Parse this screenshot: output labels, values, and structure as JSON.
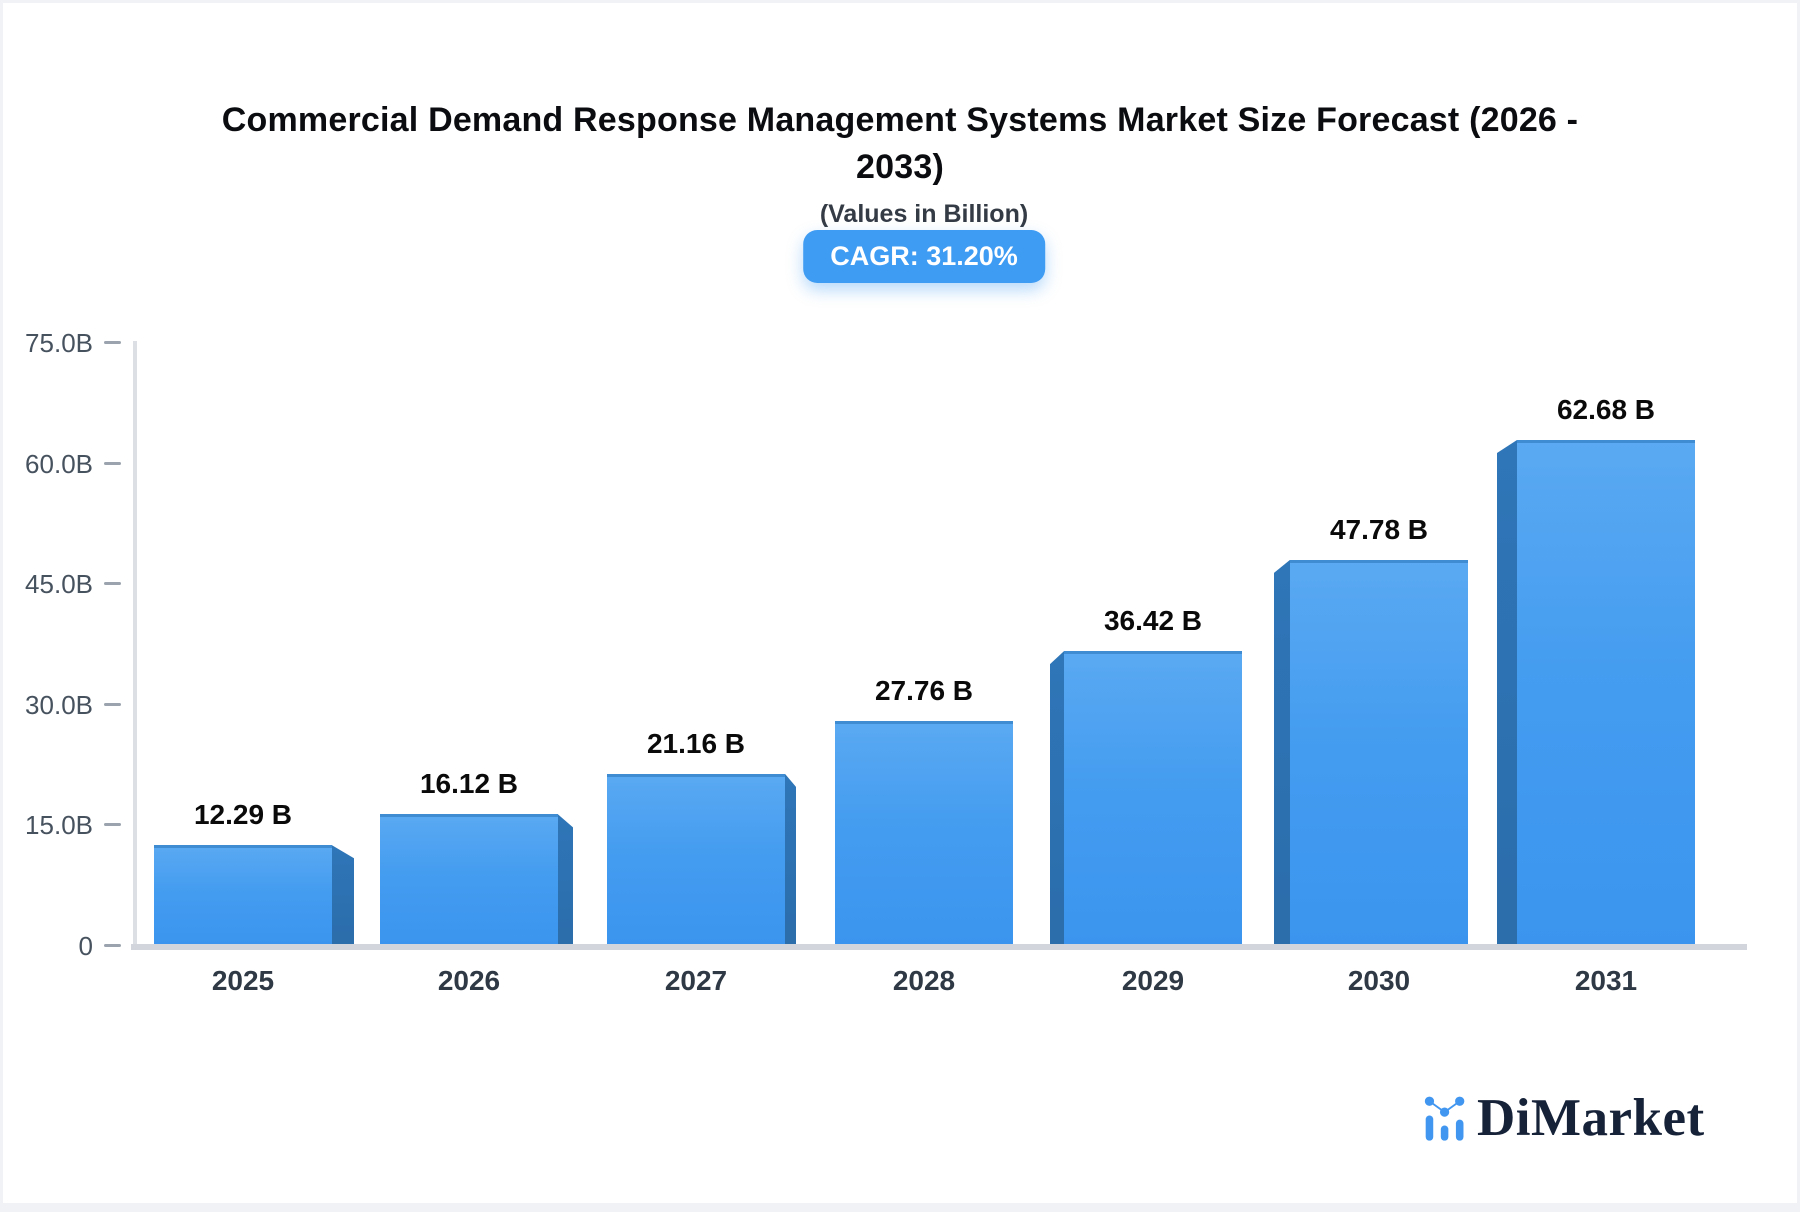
{
  "page": {
    "background": "#f1f2f5",
    "card_background": "#ffffff"
  },
  "title_lines": [
    "Commercial Demand Response Management Systems Market Size Forecast (2026 -",
    "2033)"
  ],
  "chart_data": {
    "type": "bar",
    "title": "Commercial Demand Response Management Systems Market Size Forecast (2026 - 2033)",
    "subtitle": "(Values in Billion)",
    "badge": "CAGR: 31.20%",
    "categories": [
      "2025",
      "2026",
      "2027",
      "2028",
      "2029",
      "2030",
      "2031"
    ],
    "values": [
      12.29,
      16.12,
      21.16,
      27.76,
      36.42,
      47.78,
      62.68
    ],
    "bar_labels": [
      "12.29 B",
      "16.12 B",
      "21.16 B",
      "27.76 B",
      "36.42 B",
      "47.78 B",
      "62.68 B"
    ],
    "y_ticks": [
      {
        "label": "75.0B",
        "value": 75
      },
      {
        "label": "60.0B",
        "value": 60
      },
      {
        "label": "45.0B",
        "value": 45
      },
      {
        "label": "30.0B",
        "value": 30
      },
      {
        "label": "15.0B",
        "value": 15
      },
      {
        "label": "0",
        "value": 0
      }
    ],
    "ylim": [
      0,
      75
    ],
    "unit": "Billion",
    "grid": "off",
    "legend": "none",
    "colors": {
      "bar_face_top": "#5aa9f2",
      "bar_face_bottom": "#3b95ee",
      "bar_side": "#2e76b8",
      "badge_background": "#3f9cf3",
      "badge_text": "#ffffff",
      "axis": "#d2d6dc"
    }
  },
  "logo": {
    "text": "DiMarket",
    "icon": "mini-bar-chart-icon",
    "text_color": "#152238",
    "icon_color": "#4196f0"
  }
}
